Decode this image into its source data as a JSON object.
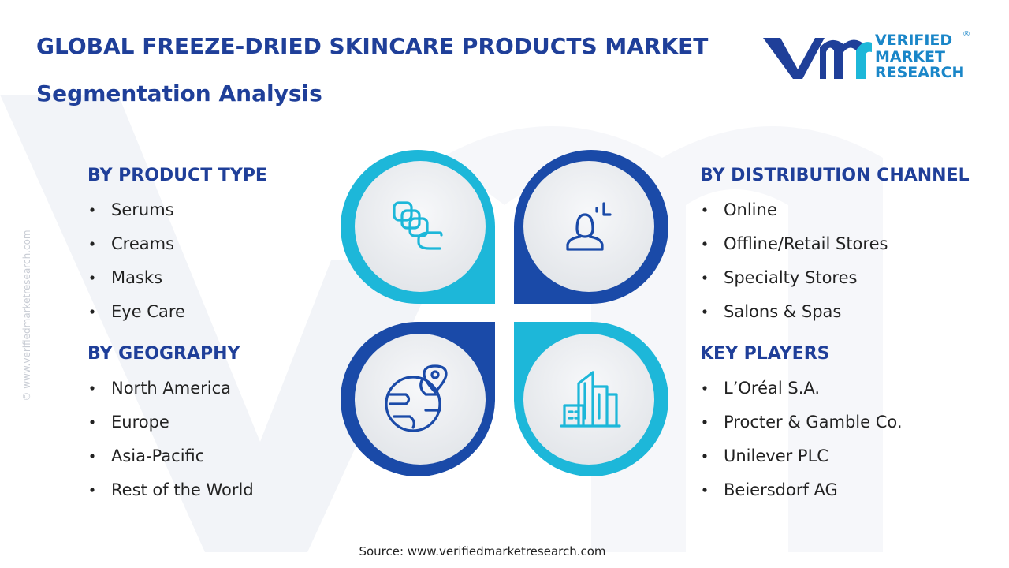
{
  "header": {
    "title": "GLOBAL FREEZE-DRIED SKINCARE PRODUCTS MARKET",
    "subtitle": "Segmentation Analysis"
  },
  "logo": {
    "lines": [
      "VERIFIED",
      "MARKET",
      "RESEARCH"
    ],
    "mark": "®"
  },
  "sections": [
    {
      "heading": "BY PRODUCT TYPE",
      "items": [
        "Serums",
        "Creams",
        "Masks",
        "Eye Care"
      ]
    },
    {
      "heading": "BY GEOGRAPHY",
      "items": [
        "North America",
        "Europe",
        "Asia-Pacific",
        "Rest of the World"
      ]
    },
    {
      "heading": "BY DISTRIBUTION CHANNEL",
      "items": [
        "Online",
        "Offline/Retail Stores",
        "Specialty Stores",
        "Salons & Spas"
      ]
    },
    {
      "heading": "KEY PLAYERS",
      "items": [
        "L’Oréal S.A.",
        "Procter & Gamble Co.",
        "Unilever PLC",
        "Beiersdorf AG"
      ]
    }
  ],
  "source": "Source: www.verifiedmarketresearch.com",
  "watermark": "© www.verifiedmarketresearch.com"
}
